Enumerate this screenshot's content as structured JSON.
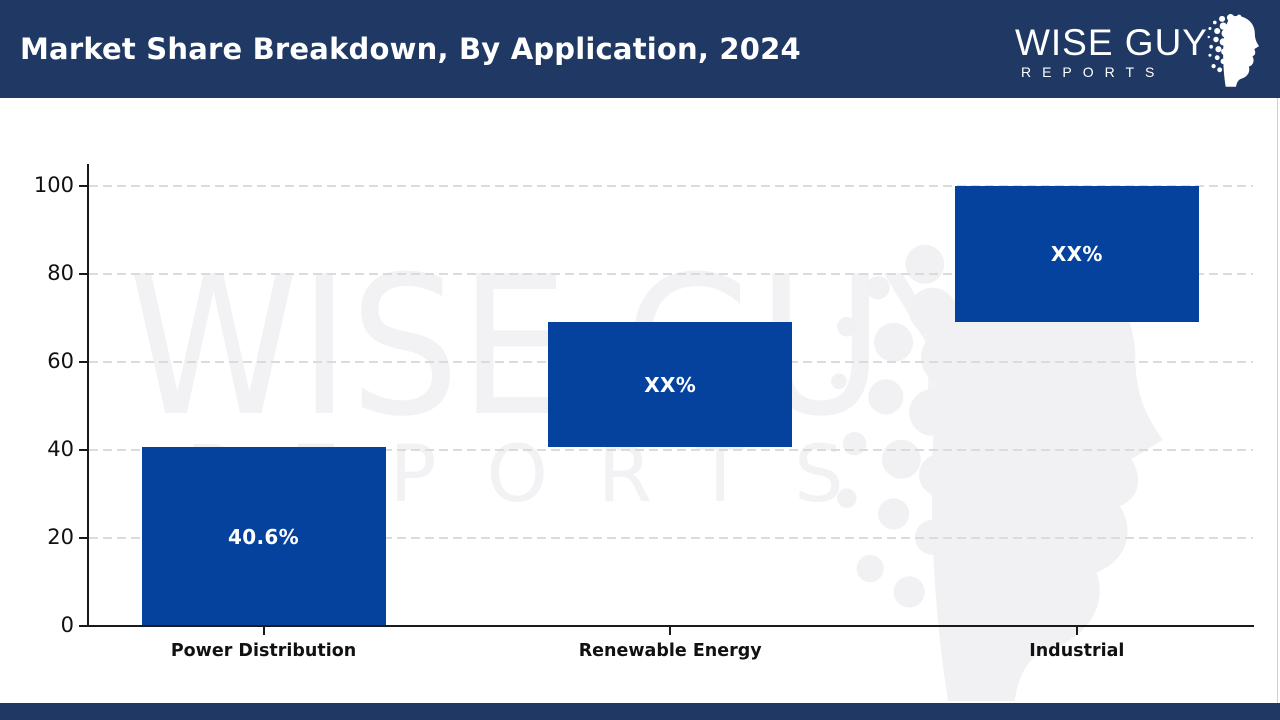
{
  "header": {
    "title": "Market Share Breakdown, By Application, 2024",
    "logo": {
      "brand_line1": "WISE GUY",
      "brand_line2": "REPORTS",
      "face_icon": "face-profile-dots-icon"
    }
  },
  "watermark": {
    "line1": "WISE GUY",
    "line2": "REPORTS"
  },
  "chart_data": {
    "type": "bar",
    "subtype": "floating-waterfall",
    "title": "Market Share Breakdown, By Application, 2024",
    "categories": [
      "Power Distribution",
      "Renewable Energy",
      "Industrial"
    ],
    "series": [
      {
        "name": "Power Distribution",
        "start": 0,
        "end": 40.6,
        "label": "40.6%"
      },
      {
        "name": "Renewable Energy",
        "start": 40.6,
        "end": 69,
        "label": "XX%"
      },
      {
        "name": "Industrial",
        "start": 69,
        "end": 100,
        "label": "XX%"
      }
    ],
    "xlabel": "",
    "ylabel": "",
    "yticks": [
      0,
      20,
      40,
      60,
      80,
      100
    ],
    "ylim": [
      0,
      105
    ],
    "grid": "horizontal-dashed",
    "legend": "none",
    "bar_color": "#05429e",
    "bar_label_color": "#ffffff"
  },
  "colors": {
    "header_bg": "#1f3864",
    "footer_bg": "#1f3864",
    "bar": "#05429e",
    "grid": "#dbdbdb",
    "axis": "#1a1a1a",
    "watermark": "#f2f2f4",
    "background": "#ffffff"
  }
}
